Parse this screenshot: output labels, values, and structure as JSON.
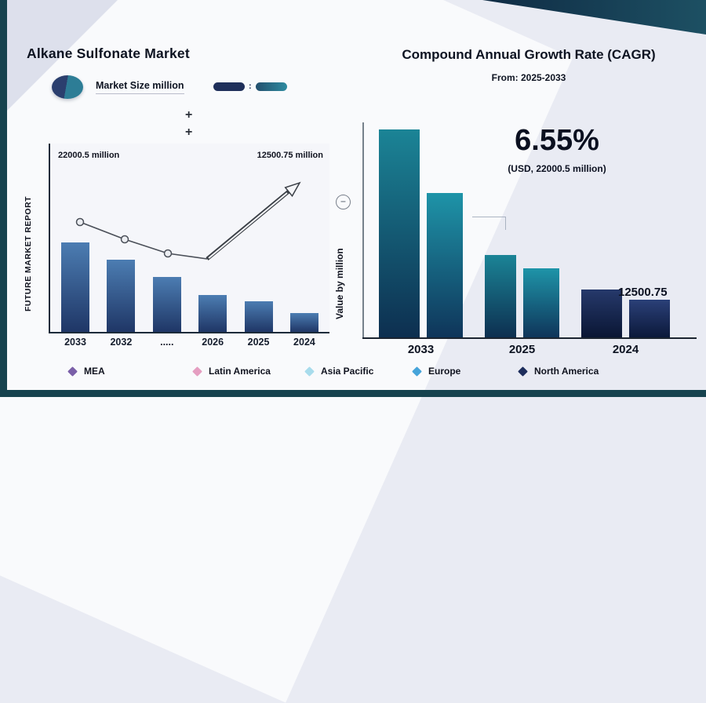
{
  "page": {
    "accent_color": "#17434f",
    "background_color": "#e9ebf3"
  },
  "left_panel": {
    "title": "Alkane Sulfonate Market",
    "legend_label": "Market Size million",
    "ylabel": "FUTURE MARKET REPORT",
    "annotation_left": "22000.5 million",
    "annotation_right": "12500.75 million"
  },
  "middle": {
    "value_axis_label": "Value by million"
  },
  "right_panel": {
    "title": "Compound Annual Growth Rate (CAGR)",
    "subtitle": "From: 2025-2033",
    "cagr": "6.55%",
    "cagr_note": "(USD, 22000.5 million)",
    "annotation_value": "12500.75"
  },
  "legend": {
    "items": [
      {
        "label": "MEA",
        "color": "#7a5fa8"
      },
      {
        "label": "Latin America",
        "color": "#e59ec1"
      },
      {
        "label": "Asia Pacific",
        "color": "#a8dcec"
      },
      {
        "label": "Europe",
        "color": "#46a4da"
      },
      {
        "label": "North America",
        "color": "#1d2d5c"
      }
    ]
  },
  "chart_data": [
    {
      "type": "bar",
      "title": "Alkane Sulfonate Market",
      "subtitle": "Market Size million",
      "ylabel": "FUTURE MARKET REPORT",
      "categories": [
        "2033",
        "2032",
        ".....",
        "2026",
        "2025",
        "2024"
      ],
      "values": [
        22000.5,
        17800,
        13600,
        9100,
        7600,
        4700
      ],
      "annotations": [
        "22000.5 million",
        "12500.75 million"
      ],
      "bar_gradient": [
        "#4c7db2",
        "#1f3666"
      ],
      "legend_position": "top-left",
      "grid": false
    },
    {
      "type": "bar",
      "title": "Compound Annual Growth Rate (CAGR)",
      "subtitle": "From: 2025-2033",
      "cagr_percent": 6.55,
      "cagr_basis": "(USD, 22000.5 million)",
      "ylabel": "Value by million",
      "categories": [
        "2033",
        "2025",
        "2024"
      ],
      "series": [
        {
          "name": "series-a",
          "values": [
            22000.5,
            8700,
            5100
          ]
        },
        {
          "name": "series-b",
          "values": [
            15300,
            7300,
            4000
          ]
        }
      ],
      "annotation": "12500.75",
      "bar_gradients_teal": [
        "#1b8496",
        "#0d2f50"
      ],
      "bar_gradients_navy": [
        "#26396b",
        "#0a1634"
      ],
      "grid": false
    }
  ]
}
